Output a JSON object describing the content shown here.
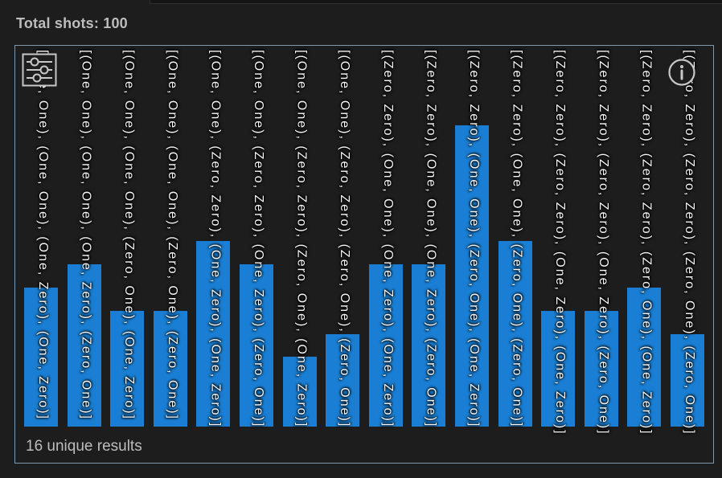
{
  "header": {
    "total_shots": "Total shots: 100"
  },
  "histogram": {
    "footer": "16 unique results",
    "icons": {
      "settings": "sliders-settings-icon",
      "info": "info-icon"
    },
    "colors": {
      "bar": "#1a7fd4",
      "panel_border": "#7e99ae",
      "background": "#1d1d1d",
      "label_text": "#f5f5f5",
      "muted_text": "#bdbdbd"
    }
  },
  "chart_data": {
    "type": "bar",
    "title": "Total shots: 100",
    "footer": "16 unique results",
    "total_shots": 100,
    "unique_results": 16,
    "y_axis_visible": false,
    "grid": false,
    "legend": false,
    "bar_labels_rotated_vertical": true,
    "ylim": [
      0,
      13
    ],
    "bar_color": "#1a7fd4",
    "categories": [
      "[(One, One), (One, One), (One, Zero), (One, Zero)]",
      "[(One, One), (One, One), (One, Zero), (Zero, One)]",
      "[(One, One), (One, One), (Zero, One), (One, Zero)]",
      "[(One, One), (One, One), (Zero, One), (Zero, One)]",
      "[(One, One), (Zero, Zero), (One, Zero), (One, Zero)]",
      "[(One, One), (Zero, Zero), (One, Zero), (Zero, One)]",
      "[(One, One), (Zero, Zero), (Zero, One), (One, Zero)]",
      "[(One, One), (Zero, Zero), (Zero, One), (Zero, One)]",
      "[(Zero, Zero), (One, One), (One, Zero), (One, Zero)]",
      "[(Zero, Zero), (One, One), (One, Zero), (Zero, One)]",
      "[(Zero, Zero), (One, One), (Zero, One), (One, Zero)]",
      "[(Zero, Zero), (One, One), (Zero, One), (Zero, One)]",
      "[(Zero, Zero), (Zero, Zero), (One, Zero), (One, Zero)]",
      "[(Zero, Zero), (Zero, Zero), (One, Zero), (Zero, One)]",
      "[(Zero, Zero), (Zero, Zero), (Zero, One), (One, Zero)]",
      "[(Zero, Zero), (Zero, Zero), (Zero, One), (Zero, One)]"
    ],
    "series": [
      {
        "name": "shots",
        "values": [
          6,
          7,
          5,
          5,
          8,
          7,
          3,
          4,
          7,
          7,
          13,
          8,
          5,
          5,
          6,
          4
        ]
      }
    ]
  }
}
